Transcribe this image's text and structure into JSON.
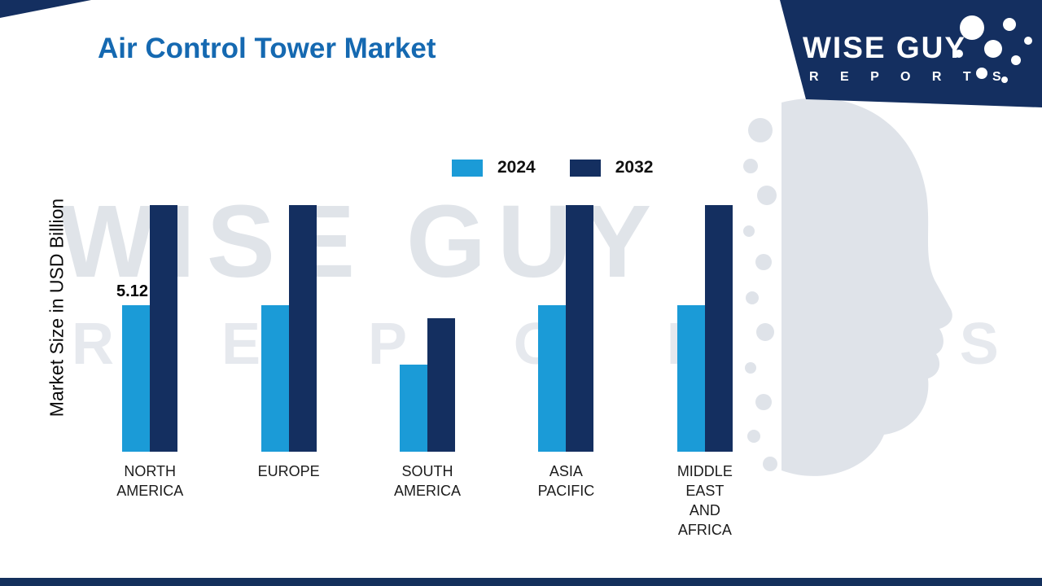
{
  "page": {
    "title": "Air Control Tower Market"
  },
  "logo": {
    "name": "WISE GUY",
    "tagline": "R E P O R T S"
  },
  "watermark": {
    "name": "WISE GUY",
    "tagline": "R E P O R T S"
  },
  "chart_data": {
    "type": "bar",
    "title": "Air Control Tower Market",
    "xlabel": "",
    "ylabel": "Market Size in USD Billion",
    "unit": "USD Billion",
    "ylim": [
      0,
      9
    ],
    "grid": false,
    "legend_position": "top",
    "categories": [
      [
        "NORTH",
        "AMERICA"
      ],
      [
        "EUROPE"
      ],
      [
        "SOUTH",
        "AMERICA"
      ],
      [
        "ASIA",
        "PACIFIC"
      ],
      [
        "MIDDLE",
        "EAST",
        "AND",
        "AFRICA"
      ]
    ],
    "series": [
      {
        "name": "2024",
        "color": "#1b9bd7",
        "values": [
          5.12,
          5.1,
          3.05,
          5.1,
          5.12
        ]
      },
      {
        "name": "2032",
        "color": "#142f60",
        "values": [
          8.6,
          8.6,
          4.65,
          8.6,
          8.6
        ]
      }
    ],
    "annotations": [
      {
        "text": "5.12",
        "category_index": 0,
        "series_index": 0
      }
    ]
  },
  "colors": {
    "title": "#1569b1",
    "bar_2024": "#1b9bd7",
    "bar_2032": "#142f60",
    "logo_bg": "#142f60",
    "watermark": "#e0e4e9"
  }
}
